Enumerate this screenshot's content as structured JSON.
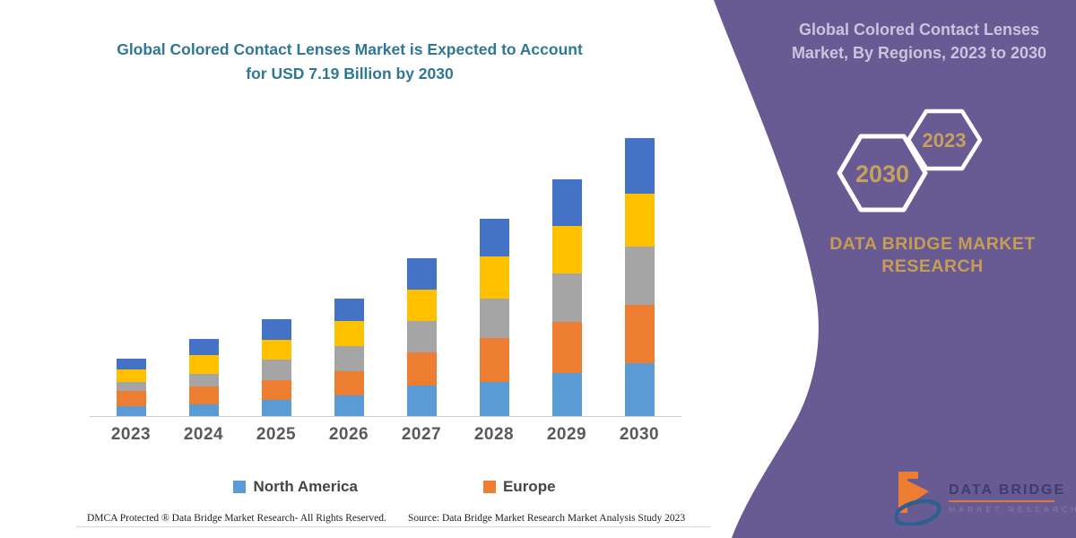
{
  "left": {
    "title_line1": "Global Colored Contact Lenses Market is Expected to Account",
    "title_line2": "for USD 7.19 Billion by 2030"
  },
  "chart_data": {
    "type": "bar",
    "stacked": true,
    "unit": "USD billion",
    "title": "Global Colored Contact Lenses Market is Expected to Account for USD 7.19 Billion by 2030",
    "xlabel": "",
    "ylabel": "",
    "y_axis_visible": false,
    "grid": false,
    "legend_position": "bottom",
    "categories": [
      "2023",
      "2024",
      "2025",
      "2026",
      "2027",
      "2028",
      "2029",
      "2030"
    ],
    "series": [
      {
        "name": "North America",
        "color": "#5B9BD5",
        "in_legend": true,
        "values": [
          0.25,
          0.31,
          0.42,
          0.54,
          0.79,
          0.89,
          1.12,
          1.38
        ]
      },
      {
        "name": "Europe",
        "color": "#ED7D31",
        "in_legend": true,
        "values": [
          0.4,
          0.46,
          0.5,
          0.62,
          0.86,
          1.12,
          1.31,
          1.49
        ]
      },
      {
        "name": "unlabeled-gray-region",
        "color": "#A5A5A5",
        "in_legend": false,
        "values": [
          0.23,
          0.31,
          0.54,
          0.65,
          0.81,
          1.04,
          1.27,
          1.52
        ]
      },
      {
        "name": "unlabeled-yellow-region",
        "color": "#FFC000",
        "in_legend": false,
        "values": [
          0.32,
          0.5,
          0.52,
          0.65,
          0.81,
          1.08,
          1.23,
          1.36
        ]
      },
      {
        "name": "unlabeled-blue-region",
        "color": "#4472C4",
        "in_legend": false,
        "values": [
          0.28,
          0.42,
          0.52,
          0.58,
          0.81,
          0.97,
          1.19,
          1.44
        ]
      }
    ],
    "totals_estimated": [
      1.48,
      2.0,
      2.5,
      3.04,
      4.08,
      5.1,
      6.12,
      7.19
    ]
  },
  "legend": {
    "items": [
      {
        "label": "North America",
        "color": "#5B9BD5"
      },
      {
        "label": "Europe",
        "color": "#ED7D31"
      }
    ]
  },
  "footer": {
    "dmca": "DMCA Protected ® Data Bridge Market Research-  All Rights Reserved.",
    "source": "Source: Data Bridge Market Research  Market Analysis Study 2023"
  },
  "panel": {
    "title_line1": "Global Colored Contact Lenses",
    "title_line2": "Market, By Regions, 2023 to 2030",
    "hexagons": [
      {
        "label": "2030"
      },
      {
        "label": "2023"
      }
    ],
    "brand_line1": "DATA BRIDGE MARKET",
    "brand_line2": "RESEARCH",
    "logo": {
      "name": "DATA BRIDGE",
      "subtitle": "MARKET RESEARCH"
    }
  },
  "colors": {
    "chart_title": "#2f7796",
    "axis_labels": "#595959",
    "panel_background": "#685a92",
    "panel_title": "#cbc4dd",
    "panel_gold": "#c79c55",
    "hexagon_outline": "#ffffff",
    "logo_orange": "#ED7D31",
    "logo_blue": "#2e5f8f"
  }
}
